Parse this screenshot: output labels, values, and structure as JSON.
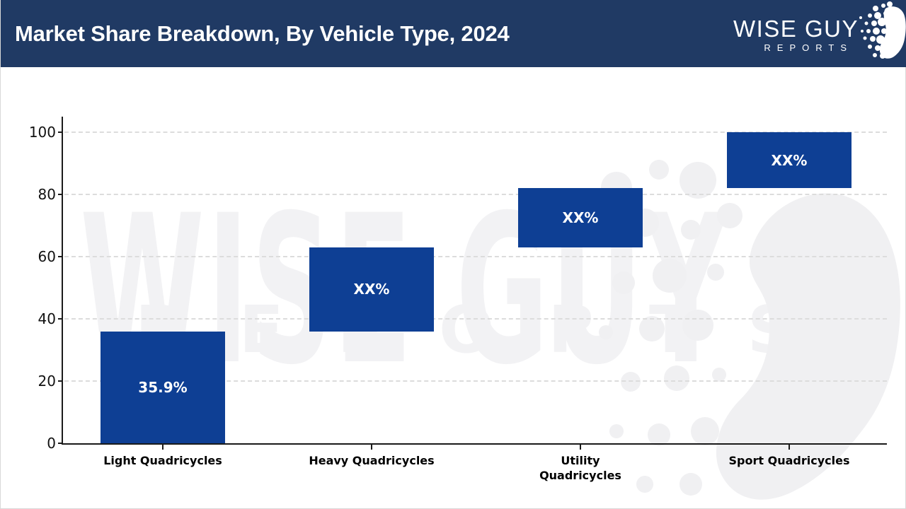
{
  "header": {
    "title": "Market Share Breakdown, By Vehicle Type, 2024",
    "logo": {
      "line1": "WISE GUY",
      "line2": "REPORTS"
    }
  },
  "watermark": {
    "line1": "WISE GUY",
    "line2": "REPORTS"
  },
  "chart_data": {
    "type": "bar",
    "subtype": "waterfall-stacked-percentage",
    "title": "Market Share Breakdown, By Vehicle Type, 2024",
    "categories": [
      "Light Quadricycles",
      "Heavy Quadricycles",
      "Utility Quadricycles",
      "Sport Quadricycles"
    ],
    "tick_labels": [
      "Light Quadricycles",
      "Heavy Quadricycles",
      "Utility\nQuadricycles",
      "Sport Quadricycles"
    ],
    "segments": [
      {
        "category": "Light Quadricycles",
        "start": 0,
        "end": 35.9,
        "label": "35.9%"
      },
      {
        "category": "Heavy Quadricycles",
        "start": 35.9,
        "end": 63,
        "label": "XX%"
      },
      {
        "category": "Utility Quadricycles",
        "start": 63,
        "end": 82,
        "label": "XX%"
      },
      {
        "category": "Sport Quadricycles",
        "start": 82,
        "end": 100,
        "label": "XX%"
      }
    ],
    "ylim": [
      0,
      100
    ],
    "yticks": [
      0,
      20,
      40,
      60,
      80,
      100
    ],
    "xlabel": "",
    "ylabel": "",
    "grid": "horizontal-dashed",
    "legend": "none",
    "bar_color": "#0e3f94",
    "bar_label_color": "#ffffff"
  },
  "colors": {
    "header_bg": "#203a64",
    "bar": "#0e3f94",
    "grid": "#dcdcdc",
    "axis": "#1a1a1a",
    "watermark": "#f2f2f4",
    "frame_border": "#d9d9d9"
  }
}
